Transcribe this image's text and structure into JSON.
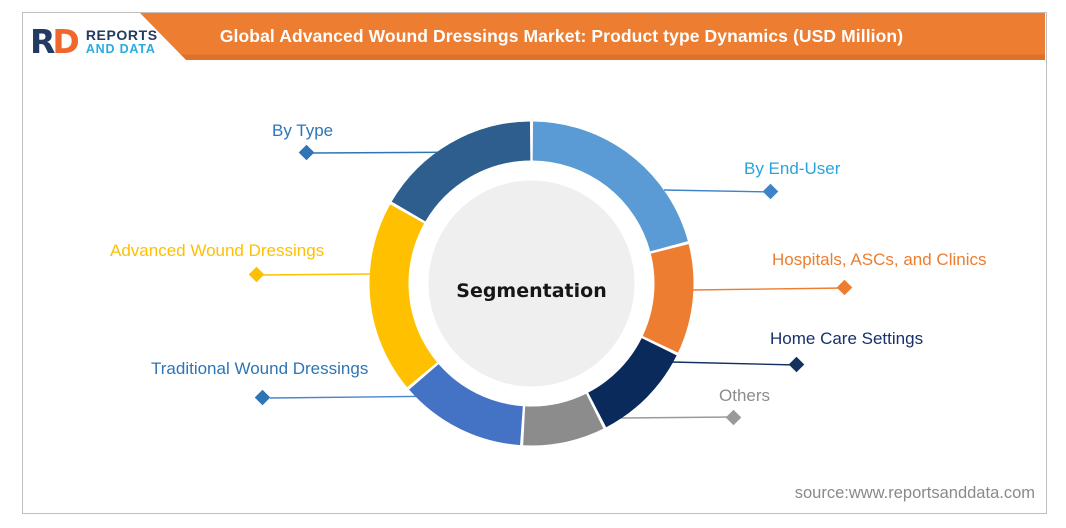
{
  "page": {
    "background": "#FFFFFF",
    "frame_border_color": "#BFBFBF"
  },
  "header": {
    "logo": {
      "monogram": [
        {
          "letter": "R",
          "color": "#233A63"
        },
        {
          "letter": "D",
          "color": "#F1662B"
        }
      ],
      "line1": "REPORTS",
      "line1_color": "#233A63",
      "line2": "AND DATA",
      "line2_color": "#29ABE2"
    },
    "banner": {
      "title": "Global Advanced Wound Dressings Market: Product type Dynamics (USD Million)",
      "bg_color": "#ED7D31",
      "shadow_color": "#DE7029",
      "text_color": "#FFFFFF"
    }
  },
  "diagram": {
    "center_label": "Segmentation",
    "center_label_color": "#161616",
    "center_circle_color": "#EFEFEF",
    "segments": [
      {
        "id": "by-end-user",
        "color": "#5B9BD5",
        "start": 0,
        "end": 75.4
      },
      {
        "id": "hospitals-ascs-and-clinics",
        "color": "#ED7D31",
        "start": 75.4,
        "end": 115.8
      },
      {
        "id": "home-care-settings",
        "color": "#0B2A5C",
        "start": 115.8,
        "end": 153.1
      },
      {
        "id": "others",
        "color": "#8C8C8C",
        "start": 153.1,
        "end": 183.5
      },
      {
        "id": "traditional-wound-dressings",
        "color": "#4472C4",
        "start": 183.5,
        "end": 229.6
      },
      {
        "id": "advanced-wound-dressings",
        "color": "#FFC000",
        "start": 229.6,
        "end": 299.8
      },
      {
        "id": "by-type",
        "color": "#2D5E8D",
        "start": 299.8,
        "end": 360
      }
    ],
    "labels": [
      {
        "id": "by-type",
        "text": "By Type",
        "color": "#2E75B6",
        "marker_color": "#2E75B6",
        "line_color": "#2E75B6"
      },
      {
        "id": "by-end-user",
        "text": "By End-User",
        "color": "#29A3DF",
        "marker_color": "#3E82C8",
        "line_color": "#3E82C8"
      },
      {
        "id": "hospitals-ascs-and-clinics",
        "text": "Hospitals, ASCs, and Clinics",
        "color": "#ED7D31",
        "marker_color": "#ED7D31",
        "line_color": "#ED7D31"
      },
      {
        "id": "home-care-settings",
        "text": "Home Care Settings",
        "color": "#17316B",
        "marker_color": "#14305F",
        "line_color": "#14305F"
      },
      {
        "id": "others",
        "text": "Others",
        "color": "#8C8C8C",
        "marker_color": "#9A9A9A",
        "line_color": "#9A9A9A"
      },
      {
        "id": "traditional-wound-dressings",
        "text": "Traditional Wound Dressings",
        "color": "#2E75B6",
        "marker_color": "#2E75B6",
        "line_color": "#4A86CE"
      },
      {
        "id": "advanced-wound-dressings",
        "text": "Advanced Wound Dressings",
        "color": "#FFC000",
        "marker_color": "#FFC000",
        "line_color": "#FFC000"
      }
    ]
  },
  "footer": {
    "source_text": "source:www.reportsanddata.com",
    "color": "#8A8A8A"
  }
}
